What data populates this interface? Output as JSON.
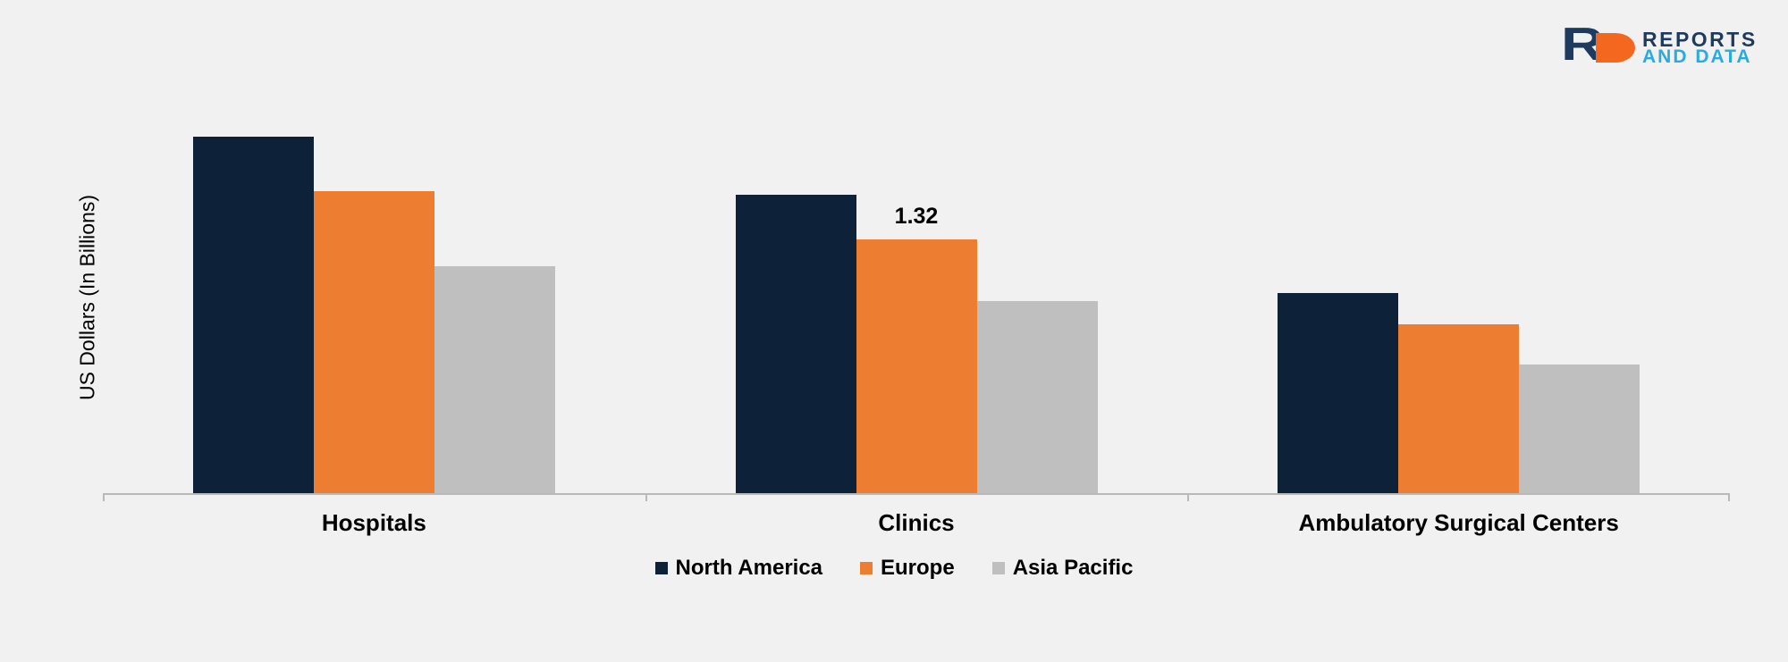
{
  "background_color": "#f1f1f1",
  "logo": {
    "mark_r": "R",
    "line1": "REPORTS",
    "line2": "AND DATA",
    "colors": {
      "navy": "#1e3a5f",
      "blue": "#29abe2",
      "orange": "#f4671e"
    }
  },
  "chart_data": {
    "type": "bar",
    "title": "",
    "xlabel": "",
    "ylabel": "US Dollars (In Billions)",
    "categories": [
      "Hospitals",
      "Clinics",
      "Ambulatory Surgical Centers"
    ],
    "series": [
      {
        "name": "North America",
        "color": "#0d2239",
        "values": [
          1.85,
          1.55,
          1.04
        ]
      },
      {
        "name": "Europe",
        "color": "#ed7d31",
        "values": [
          1.57,
          1.32,
          0.88
        ]
      },
      {
        "name": "Asia Pacific",
        "color": "#bfbfbf",
        "values": [
          1.18,
          1.0,
          0.67
        ]
      }
    ],
    "ylim": [
      0,
      2.0
    ],
    "grid": false,
    "y_axis_ticks_visible": false,
    "legend_position": "bottom",
    "data_labels": [
      {
        "category": "Clinics",
        "series": "Europe",
        "text": "1.32"
      }
    ]
  }
}
